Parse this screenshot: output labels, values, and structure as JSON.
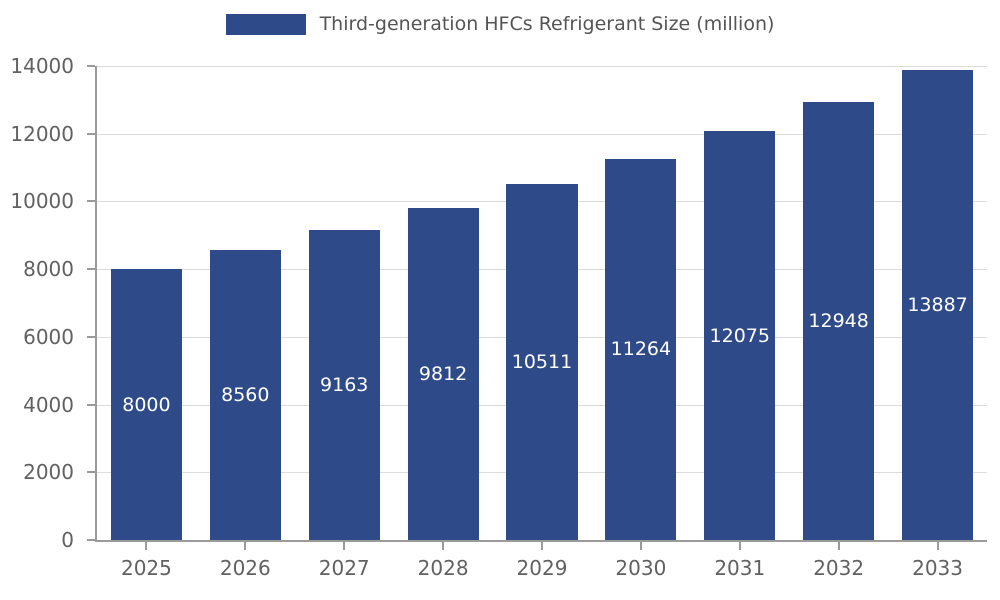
{
  "chart_data": {
    "type": "bar",
    "title": "Third-generation HFCs Refrigerant Size (million)",
    "categories": [
      "2025",
      "2026",
      "2027",
      "2028",
      "2029",
      "2030",
      "2031",
      "2032",
      "2033"
    ],
    "values": [
      8000,
      8560,
      9163,
      9812,
      10511,
      11264,
      12075,
      12948,
      13887
    ],
    "xlabel": "",
    "ylabel": "",
    "ylim": [
      0,
      14000
    ],
    "yticks": [
      0,
      2000,
      4000,
      6000,
      8000,
      10000,
      12000,
      14000
    ],
    "grid": true,
    "legend_position": "top-center",
    "bar_color": "#2e4a89",
    "value_label_color": "#ffffff",
    "axis_label_color": "#616161",
    "legend_text_color": "#555555",
    "gridline_color": "#dcdcdc",
    "axis_line_color": "#9a9a9a"
  }
}
